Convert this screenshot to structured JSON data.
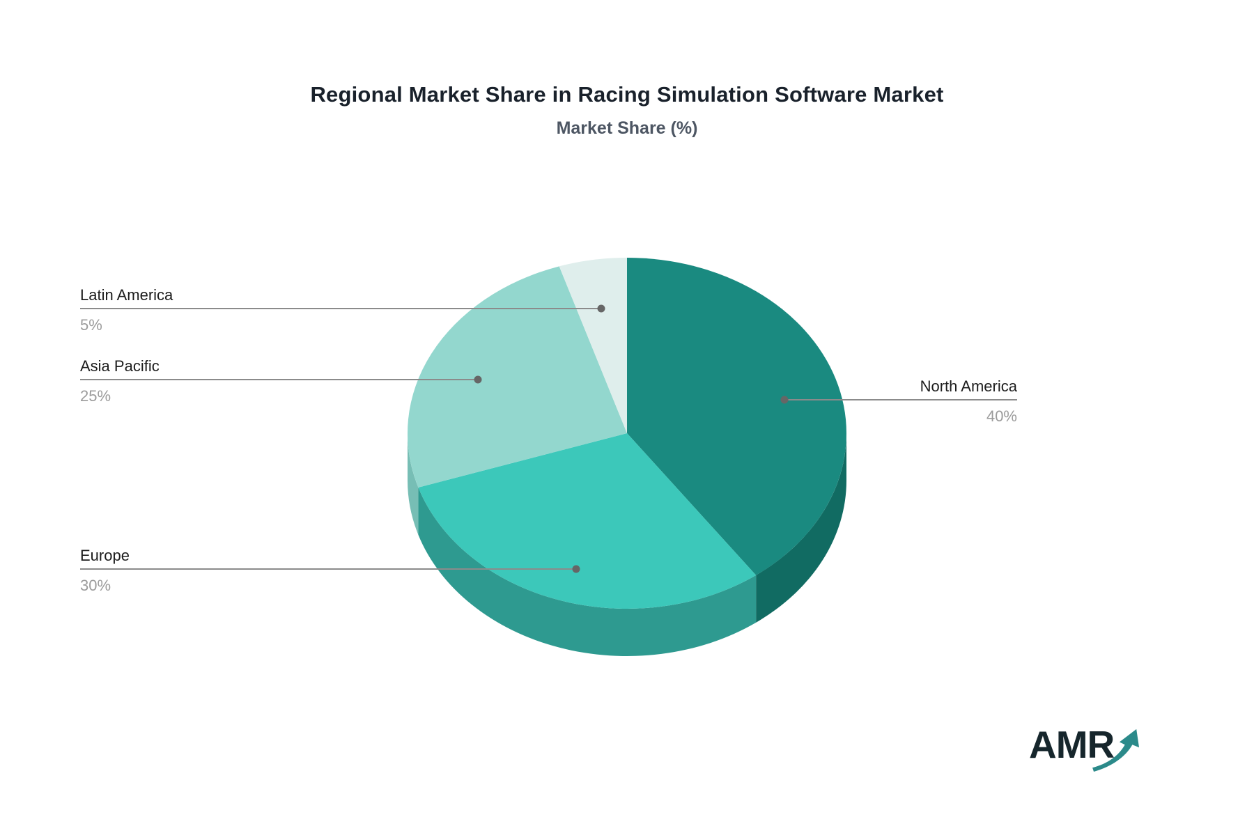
{
  "header": {
    "title": "Regional Market Share in Racing Simulation Software Market",
    "subtitle": "Market Share (%)"
  },
  "logo": {
    "text": "AMR",
    "text_color": "#16262c",
    "arrow_color": "#2b8a8a"
  },
  "chart_data": {
    "type": "pie",
    "title": "Regional Market Share in Racing Simulation Software Market",
    "subtitle": "Market Share (%)",
    "unit": "%",
    "effect": "3d",
    "start_angle_deg": 0,
    "direction": "clockwise",
    "legend_position": "callout-labels",
    "slices": [
      {
        "label": "North America",
        "value": 40,
        "display": "40%",
        "color": "#1a8a80",
        "side_color": "#116b62",
        "callout_side": "right"
      },
      {
        "label": "Europe",
        "value": 30,
        "display": "30%",
        "color": "#3cc8ba",
        "side_color": "#2e9a90",
        "callout_side": "left"
      },
      {
        "label": "Asia Pacific",
        "value": 25,
        "display": "25%",
        "color": "#93d7ce",
        "side_color": "#77beb5",
        "callout_side": "left"
      },
      {
        "label": "Latin America",
        "value": 5,
        "display": "5%",
        "color": "#dfeeec",
        "side_color": "#c2dcd8",
        "callout_side": "left"
      }
    ],
    "style": {
      "label_color": "#1c1c1c",
      "percent_color": "#9b9b9b",
      "line_color": "#8b8b8b",
      "dot_color": "#666666",
      "background": "#ffffff"
    }
  }
}
